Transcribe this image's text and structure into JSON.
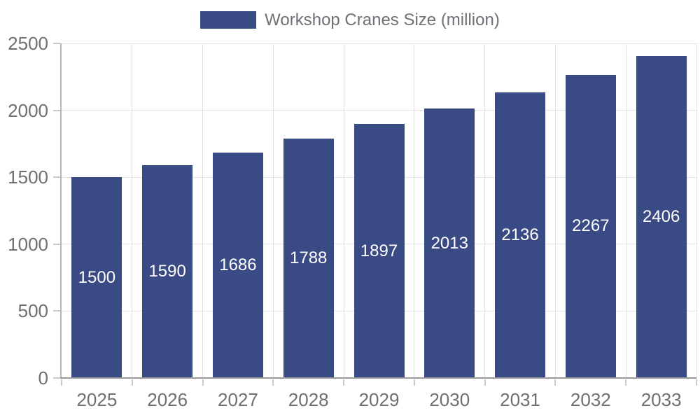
{
  "chart_data": {
    "type": "bar",
    "title": "Workshop Cranes Size (million)",
    "series_name": "Workshop Cranes Size (million)",
    "categories": [
      "2025",
      "2026",
      "2027",
      "2028",
      "2029",
      "2030",
      "2031",
      "2032",
      "2033"
    ],
    "values": [
      1500,
      1590,
      1686,
      1788,
      1897,
      2013,
      2136,
      2267,
      2406
    ],
    "value_labels": [
      "1500",
      "1590",
      "1686",
      "1788",
      "1897",
      "2013",
      "2136",
      "2267",
      "2406"
    ],
    "xlabel": "",
    "ylabel": "",
    "ylim": [
      0,
      2500
    ],
    "y_ticks": [
      0,
      500,
      1000,
      1500,
      2000,
      2500
    ],
    "y_tick_labels": [
      "0",
      "500",
      "1000",
      "1500",
      "2000",
      "2500"
    ],
    "grid": true,
    "legend_position": "top-center",
    "value_labels_position": "inside-center"
  },
  "legend": {
    "label": "Workshop Cranes Size (million)"
  },
  "colors": {
    "bar": "#3A4A84",
    "background": "#FFFFFF",
    "grid": "#E3E3E7",
    "axis_x": "#9A9A9A",
    "axis_y": "#B5B5BC",
    "tick": "#C9C9D2",
    "tick_label": "#6E6E73",
    "legend_label": "#6E7075",
    "value_label": "#FFFFFF"
  }
}
